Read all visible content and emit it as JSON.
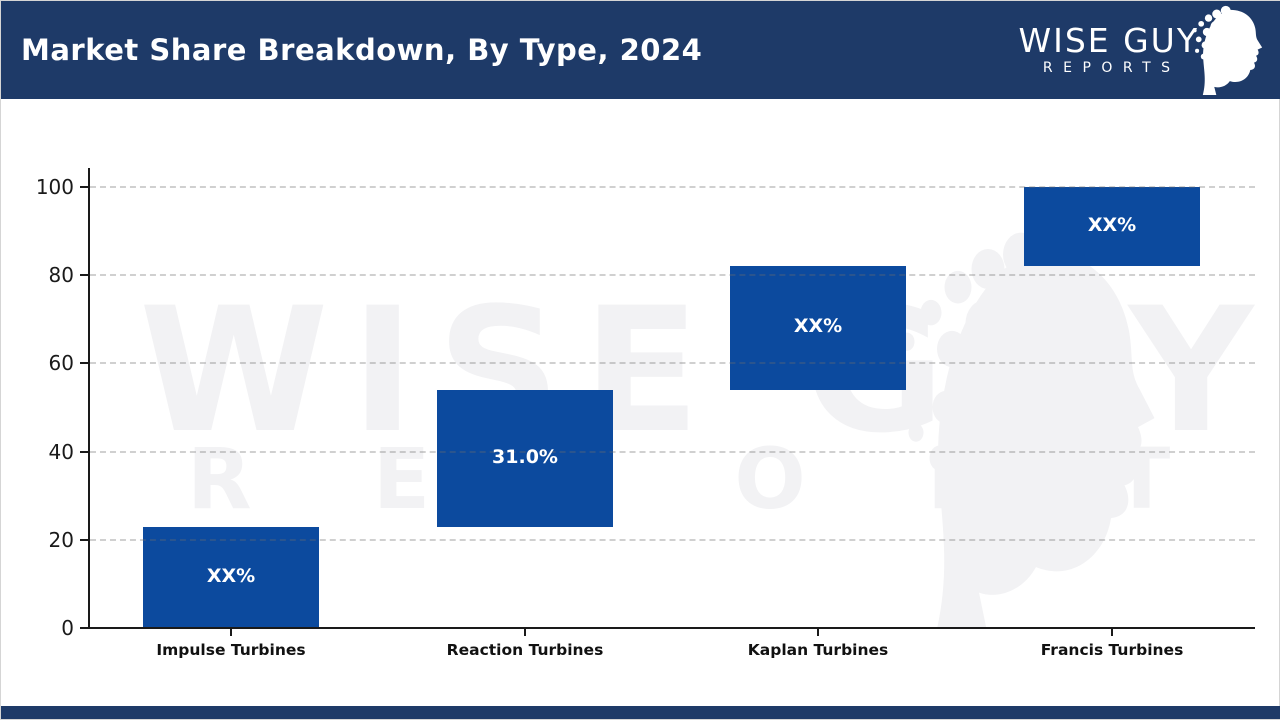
{
  "header": {
    "title": "Market Share Breakdown, By Type, 2024",
    "logo": {
      "line1": "WISE GUY",
      "line2": "REPORTS"
    }
  },
  "watermark": {
    "line1": "WISE GUY",
    "line2": "R E P O R T S"
  },
  "colors": {
    "header_bg": "#1e3a68",
    "footer_bg": "#1e3a68",
    "bar": "#0c4a9e",
    "bar_label": "#ffffff",
    "axis": "#1a1a1a",
    "grid": "rgba(108,108,108,0.32)",
    "watermark": "#f2f2f4"
  },
  "chart_data": {
    "type": "bar",
    "subtype": "waterfall",
    "title": "Market Share Breakdown, By Type, 2024",
    "categories": [
      "Impulse Turbines",
      "Reaction Turbines",
      "Kaplan Turbines",
      "Francis Turbines"
    ],
    "segments": [
      {
        "category": "Impulse Turbines",
        "start": 0,
        "end": 23,
        "label": "XX%"
      },
      {
        "category": "Reaction Turbines",
        "start": 23,
        "end": 54,
        "label": "31.0%"
      },
      {
        "category": "Kaplan Turbines",
        "start": 54,
        "end": 82,
        "label": "XX%"
      },
      {
        "category": "Francis Turbines",
        "start": 82,
        "end": 100,
        "label": "XX%"
      }
    ],
    "values_sum": 100,
    "yticks": [
      0,
      20,
      40,
      60,
      80,
      100
    ],
    "ylim": [
      0,
      100
    ],
    "xlabel": "",
    "ylabel": "",
    "grid": "horizontal dashed, drawn over bars",
    "legend": "none"
  }
}
